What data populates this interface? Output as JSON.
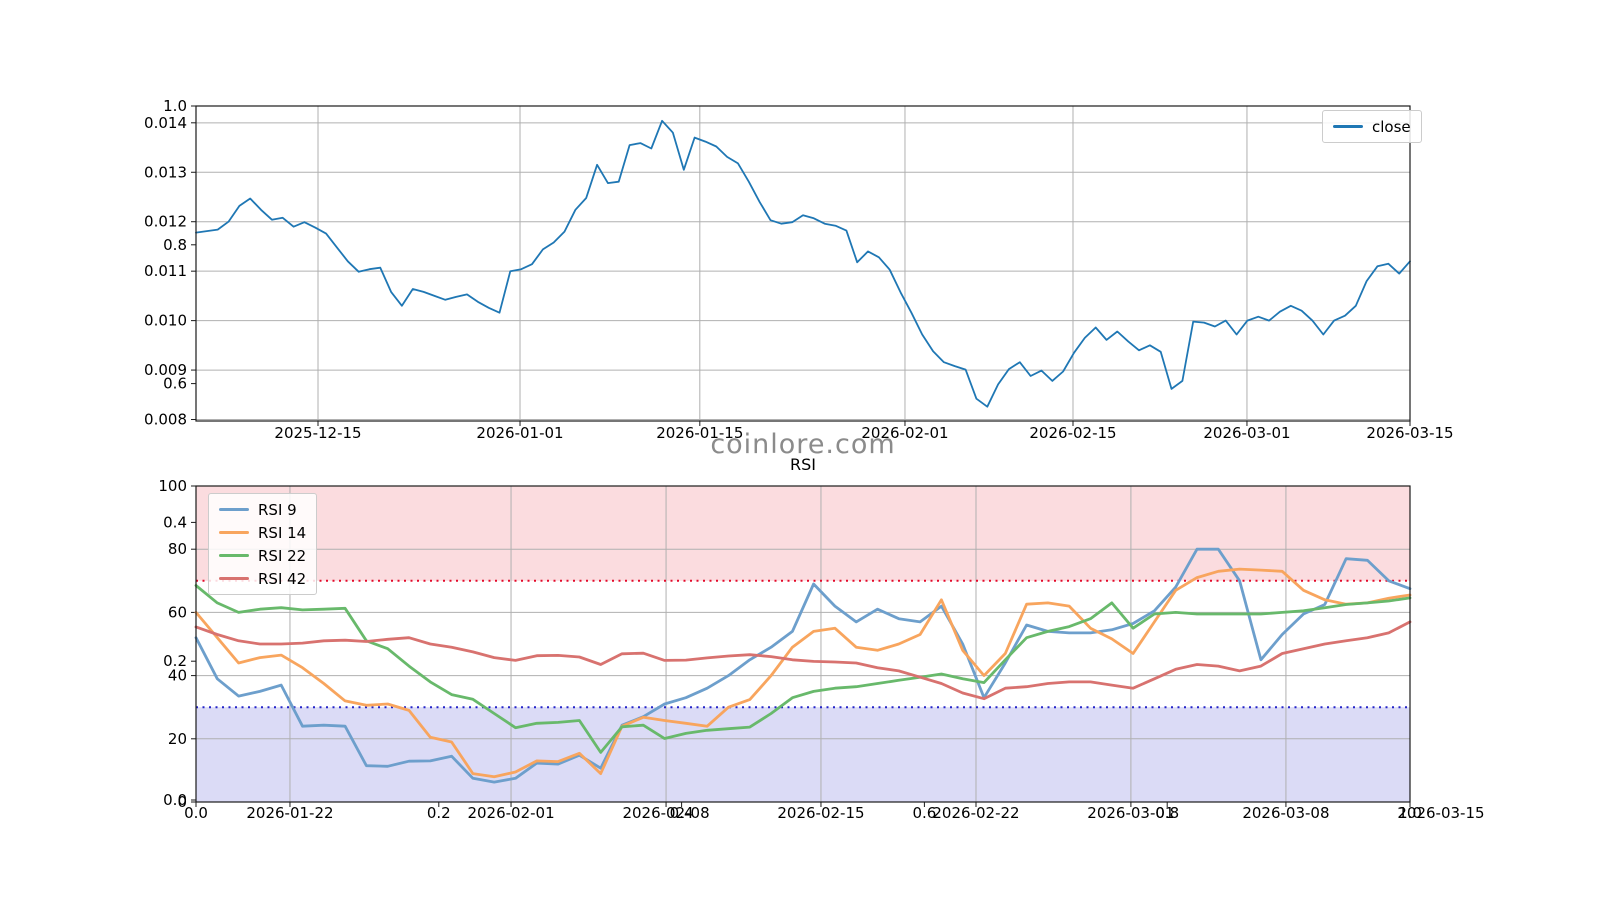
{
  "watermark": "coinlore.com",
  "overlay_axis": {
    "x_labels": [
      "0.0",
      "0.2",
      "0.4",
      "0.6",
      "0.8",
      "1.0"
    ],
    "y_labels": [
      "0.0",
      "0.2",
      "0.4",
      "0.6",
      "0.8",
      "1.0"
    ]
  },
  "chart_data": [
    {
      "type": "line",
      "name": "price-chart",
      "title": "",
      "xlabel": "",
      "ylabel": "",
      "grid": true,
      "legend_position": "top-right",
      "ylim": [
        0.00797,
        0.01434
      ],
      "yticks": [
        {
          "v": 0.008,
          "label": "0.008"
        },
        {
          "v": 0.009,
          "label": "0.009"
        },
        {
          "v": 0.01,
          "label": "0.010"
        },
        {
          "v": 0.011,
          "label": "0.011"
        },
        {
          "v": 0.012,
          "label": "0.012"
        },
        {
          "v": 0.013,
          "label": "0.013"
        },
        {
          "v": 0.014,
          "label": "0.014"
        }
      ],
      "xticks": [
        {
          "f": 0.1005,
          "label": "2025-12-15"
        },
        {
          "f": 0.2669,
          "label": "2026-01-01"
        },
        {
          "f": 0.415,
          "label": "2026-01-15"
        },
        {
          "f": 0.584,
          "label": "2026-02-01"
        },
        {
          "f": 0.7224,
          "label": "2026-02-15"
        },
        {
          "f": 0.8657,
          "label": "2026-03-01"
        },
        {
          "f": 1.0,
          "label": "2026-03-15"
        }
      ],
      "series": [
        {
          "name": "close",
          "color": "#1f77b4",
          "width": 1.8,
          "values": [
            0.01178,
            0.01181,
            0.01184,
            0.012,
            0.01232,
            0.01247,
            0.01224,
            0.01204,
            0.01208,
            0.0119,
            0.01199,
            0.01188,
            0.01176,
            0.01148,
            0.0112,
            0.01099,
            0.01104,
            0.01107,
            0.01058,
            0.0103,
            0.01064,
            0.01058,
            0.0105,
            0.01042,
            0.01048,
            0.01053,
            0.01038,
            0.01026,
            0.01016,
            0.011,
            0.01104,
            0.01114,
            0.01144,
            0.01158,
            0.0118,
            0.01224,
            0.01248,
            0.01315,
            0.01278,
            0.01281,
            0.01355,
            0.01359,
            0.01348,
            0.01404,
            0.0138,
            0.01305,
            0.0137,
            0.01362,
            0.01352,
            0.01331,
            0.01318,
            0.01281,
            0.0124,
            0.01203,
            0.01196,
            0.01199,
            0.01213,
            0.01207,
            0.01196,
            0.01192,
            0.01182,
            0.01118,
            0.0114,
            0.01128,
            0.01103,
            0.01057,
            0.01016,
            0.00972,
            0.00938,
            0.00916,
            0.00908,
            0.00901,
            0.00842,
            0.00826,
            0.00871,
            0.00902,
            0.00916,
            0.00888,
            0.00899,
            0.00878,
            0.00897,
            0.00935,
            0.00965,
            0.00986,
            0.00961,
            0.00978,
            0.00958,
            0.0094,
            0.0095,
            0.00937,
            0.00862,
            0.00878,
            0.00998,
            0.00996,
            0.00988,
            0.01,
            0.00972,
            0.01,
            0.01008,
            0.01,
            0.01018,
            0.0103,
            0.0102,
            0.01,
            0.00972,
            0.01,
            0.0101,
            0.0103,
            0.0108,
            0.0111,
            0.01115,
            0.01095,
            0.0112
          ]
        }
      ]
    },
    {
      "type": "line",
      "name": "rsi-chart",
      "title": "RSI",
      "xlabel": "",
      "ylabel": "",
      "grid": true,
      "legend_position": "top-left",
      "ylim": [
        0,
        100
      ],
      "yticks": [
        {
          "v": 0,
          "label": "0"
        },
        {
          "v": 20,
          "label": "20"
        },
        {
          "v": 40,
          "label": "40"
        },
        {
          "v": 60,
          "label": "60"
        },
        {
          "v": 80,
          "label": "80"
        },
        {
          "v": 100,
          "label": "100"
        }
      ],
      "xticks": [
        {
          "f": 0.0774,
          "label": "2026-01-22"
        },
        {
          "f": 0.2595,
          "label": "2026-02-01"
        },
        {
          "f": 0.3872,
          "label": "2026-02-08"
        },
        {
          "f": 0.5148,
          "label": "2026-02-15"
        },
        {
          "f": 0.6425,
          "label": "2026-02-22"
        },
        {
          "f": 0.7701,
          "label": "2026-03-01"
        },
        {
          "f": 0.8978,
          "label": "2026-03-08"
        },
        {
          "f": 1.0255,
          "label": "2026-03-15"
        }
      ],
      "bands": [
        {
          "name": "overbought-band",
          "from": 70,
          "to": 100,
          "color": "#fbdcdf"
        },
        {
          "name": "oversold-band",
          "from": 0,
          "to": 30,
          "color": "#dbdbf6"
        }
      ],
      "levels": [
        {
          "name": "overbought-level",
          "v": 70,
          "color": "#e30a2a"
        },
        {
          "name": "oversold-level",
          "v": 30,
          "color": "#2424c8"
        }
      ],
      "series": [
        {
          "name": "RSI 9",
          "color": "#6d9fcc",
          "width": 2.8,
          "values": [
            52,
            39,
            33.5,
            35,
            37,
            24,
            24.3,
            24,
            11.5,
            11.3,
            12.9,
            13,
            14.5,
            7.5,
            6.3,
            7.5,
            12.3,
            12,
            14.8,
            10.7,
            24.3,
            27,
            31,
            33,
            36,
            40,
            45,
            49,
            54,
            69,
            62,
            57,
            61,
            58,
            57,
            62,
            50,
            33,
            44,
            56,
            54,
            53.5,
            53.5,
            54.5,
            56.5,
            60.5,
            68,
            80,
            80,
            70,
            45,
            53,
            59.5,
            62.5,
            77,
            76.5,
            70,
            67.5
          ]
        },
        {
          "name": "RSI 14",
          "color": "#f8a55e",
          "width": 2.8,
          "values": [
            60,
            52,
            44,
            45.7,
            46.5,
            42.5,
            37.5,
            32,
            30.6,
            31,
            29,
            20.5,
            19,
            9,
            8,
            9.5,
            13,
            12.8,
            15.4,
            9,
            24,
            26.8,
            25.8,
            24.9,
            24,
            30,
            32.4,
            40,
            49,
            54,
            55,
            49,
            48,
            50,
            53,
            64,
            48,
            40,
            47,
            62.6,
            63,
            62,
            55,
            51.6,
            47,
            57,
            67,
            71,
            73,
            73.7,
            73.4,
            73,
            67,
            64,
            62.6,
            63,
            64.5,
            65.5
          ]
        },
        {
          "name": "RSI 22",
          "color": "#68b96b",
          "width": 2.8,
          "values": [
            68.5,
            63,
            60,
            61,
            61.5,
            60.8,
            61,
            61.3,
            51,
            48.5,
            43,
            38,
            34,
            32.5,
            28,
            23.5,
            24.9,
            25.2,
            25.8,
            15.7,
            23.8,
            24.3,
            20.1,
            21.7,
            22.7,
            23.2,
            23.7,
            28,
            33,
            35,
            36,
            36.5,
            37.5,
            38.5,
            39.5,
            40.5,
            39,
            37.8,
            45,
            52,
            54,
            55.5,
            58,
            63,
            55,
            59.5,
            60,
            59.5,
            59.5,
            59.5,
            59.5,
            60,
            60.5,
            61.5,
            62.5,
            63,
            63.6,
            64.6
          ]
        },
        {
          "name": "RSI 42",
          "color": "#d8726f",
          "width": 2.8,
          "values": [
            55.4,
            53,
            51,
            50,
            50,
            50.3,
            51,
            51.2,
            50.8,
            51.5,
            52,
            50,
            49,
            47.5,
            45.7,
            44.8,
            46.3,
            46.4,
            45.9,
            43.5,
            46.9,
            47.1,
            44.8,
            44.9,
            45.6,
            46.2,
            46.6,
            46,
            45,
            44.5,
            44.3,
            44,
            42.5,
            41.5,
            39.5,
            37.5,
            34.5,
            32.7,
            36,
            36.5,
            37.5,
            38,
            38,
            37,
            36,
            39,
            42,
            43.5,
            43,
            41.5,
            43,
            47,
            48.5,
            50,
            51,
            52,
            53.5,
            57
          ]
        }
      ]
    }
  ]
}
